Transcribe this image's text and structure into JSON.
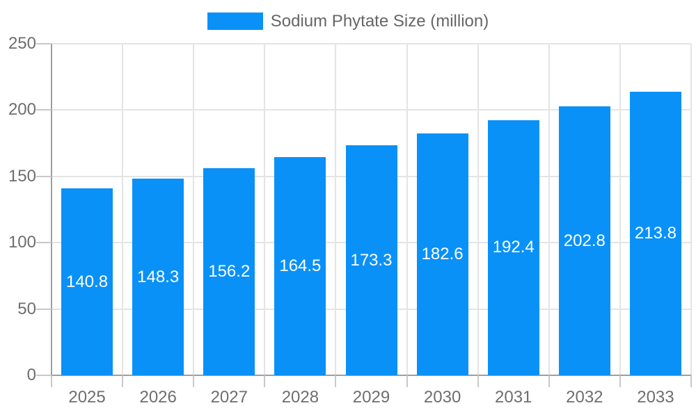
{
  "legend": {
    "label": "Sodium Phytate Size (million)"
  },
  "colors": {
    "bar": "#0991f8",
    "grid": "#e4e4e4",
    "axis": "#9e9e9e",
    "tick": "#c8c8c8",
    "axis_label": "#6e6e6e",
    "value_label": "#ffffff",
    "legend_text": "#666666",
    "background": "#ffffff"
  },
  "chart_data": {
    "type": "bar",
    "title": "",
    "categories": [
      "2025",
      "2026",
      "2027",
      "2028",
      "2029",
      "2030",
      "2031",
      "2032",
      "2033"
    ],
    "series": [
      {
        "name": "Sodium Phytate Size (million)",
        "values": [
          140.8,
          148.3,
          156.2,
          164.5,
          173.3,
          182.6,
          192.4,
          202.8,
          213.8
        ]
      }
    ],
    "xlabel": "",
    "ylabel": "",
    "ylim": [
      0,
      250
    ],
    "yticks": [
      0,
      50,
      100,
      150,
      200,
      250
    ],
    "grid": true,
    "legend_position": "top-center",
    "value_labels": "inside-center"
  }
}
